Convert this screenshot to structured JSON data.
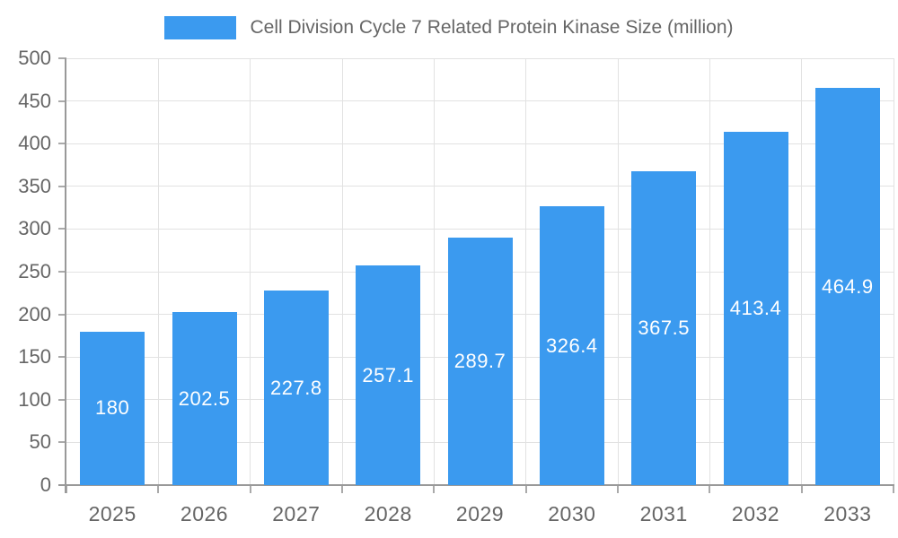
{
  "colors": {
    "bar": "#3B9AEF",
    "axis_line": "#999999",
    "gridline": "#E2E2E2",
    "tick": "#AAAAAA",
    "axis_text": "#666666",
    "data_label_text": "#FFFFFF",
    "background": "#FFFFFF"
  },
  "chart_data": {
    "type": "bar",
    "title": "Cell Division Cycle 7 Related Protein Kinase Size (million)",
    "xlabel": "",
    "ylabel": "",
    "categories": [
      "2025",
      "2026",
      "2027",
      "2028",
      "2029",
      "2030",
      "2031",
      "2032",
      "2033"
    ],
    "series": [
      {
        "name": "Cell Division Cycle 7 Related Protein Kinase Size (million)",
        "color": "#3B9AEF",
        "values": [
          180,
          202.5,
          227.8,
          257.1,
          289.7,
          326.4,
          367.5,
          413.4,
          464.9
        ]
      }
    ],
    "yticks": [
      0,
      50,
      100,
      150,
      200,
      250,
      300,
      350,
      400,
      450,
      500
    ],
    "ylim": [
      0,
      500
    ],
    "grid": true,
    "legend_position": "top",
    "data_labels": "inside-center"
  }
}
